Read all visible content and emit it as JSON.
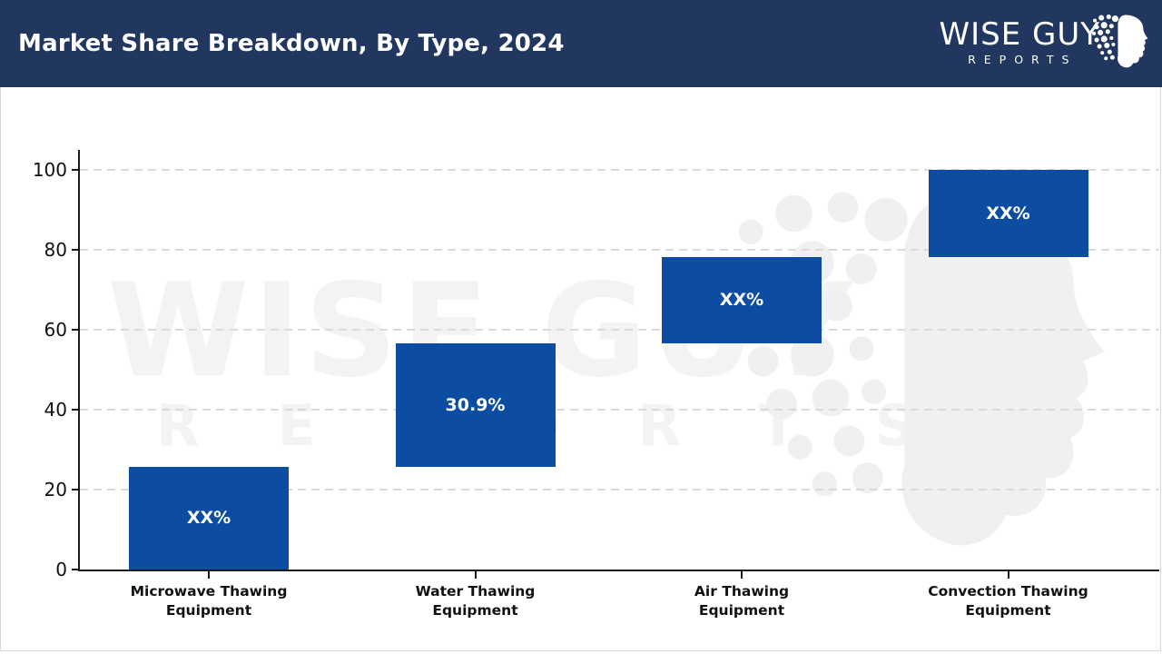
{
  "header": {
    "title": "Market Share Breakdown, By Type, 2024",
    "logo_line1": "WISE GUY",
    "logo_line2": "REPORTS"
  },
  "watermark": {
    "line1": "WISE GUY",
    "line2": "R E P O R T S"
  },
  "chart_data": {
    "type": "bar",
    "subtype": "floating-segment-waterfall",
    "title": "Market Share Breakdown, By Type, 2024",
    "categories": [
      [
        "Microwave Thawing",
        "Equipment"
      ],
      [
        "Water Thawing",
        "Equipment"
      ],
      [
        "Air Thawing",
        "Equipment"
      ],
      [
        "Convection Thawing",
        "Equipment"
      ]
    ],
    "bars": [
      {
        "start": 0,
        "end": 25.7,
        "label": "XX%"
      },
      {
        "start": 25.7,
        "end": 56.6,
        "label": "30.9%"
      },
      {
        "start": 56.6,
        "end": 78.2,
        "label": "XX%"
      },
      {
        "start": 78.2,
        "end": 100,
        "label": "XX%"
      }
    ],
    "yticks": [
      0,
      20,
      40,
      60,
      80,
      100
    ],
    "ylim": [
      0,
      105
    ],
    "xlabel": "",
    "ylabel": "",
    "grid": "horizontal-dashed",
    "legend": "none"
  },
  "colors": {
    "header_bg": "#21375F",
    "bar": "#0D4DA1",
    "bar_label": "#FFFFFF",
    "grid": "#DADADA",
    "axis": "#1A1A1A",
    "watermark": "#F3F3F3",
    "border": "#D9D9D9"
  }
}
